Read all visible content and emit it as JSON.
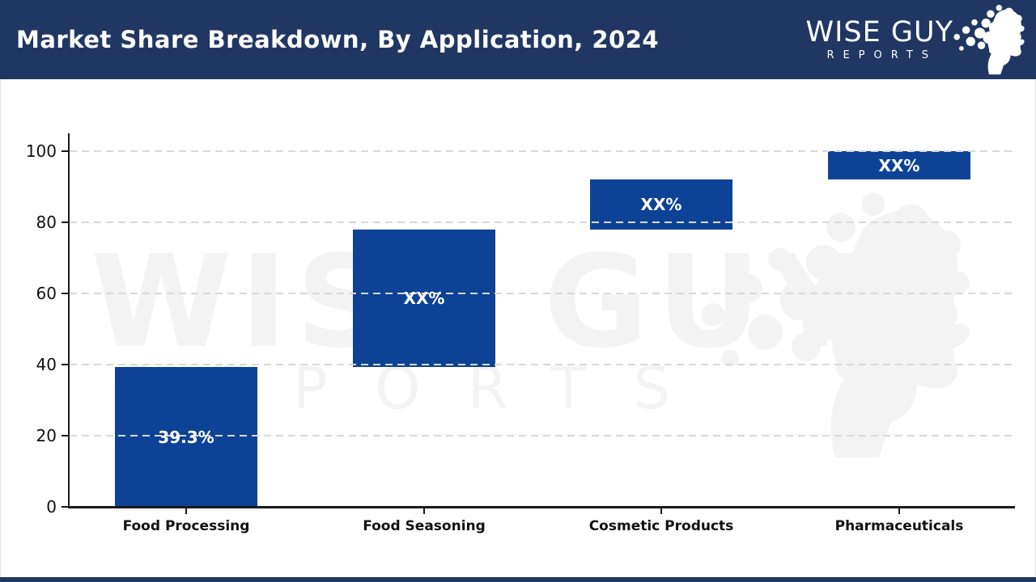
{
  "header": {
    "title": "Market Share Breakdown, By Application, 2024",
    "logo": {
      "line1": "WISE GUY",
      "line2": "REPORTS"
    }
  },
  "watermark": {
    "line1": "WISE GUY",
    "line2": "REPORTS"
  },
  "colors": {
    "navy": "#203764",
    "bar_blue": "#0d4296",
    "gridline": "#d9d9d9",
    "axis": "#1a1a1a",
    "watermark": "#f3f3f3",
    "title_text": "#ffffff",
    "bar_label_text": "#ffffff"
  },
  "chart_data": {
    "type": "bar",
    "subtype": "waterfall",
    "title": "Market Share Breakdown, By Application, 2024",
    "categories": [
      "Food Processing",
      "Food Seasoning",
      "Cosmetic Products",
      "Pharmaceuticals"
    ],
    "segments": [
      {
        "category": "Food Processing",
        "start": 0,
        "end": 39.3,
        "label": "39.3%"
      },
      {
        "category": "Food Seasoning",
        "start": 39.3,
        "end": 78,
        "label": "XX%"
      },
      {
        "category": "Cosmetic Products",
        "start": 78,
        "end": 92,
        "label": "XX%"
      },
      {
        "category": "Pharmaceuticals",
        "start": 92,
        "end": 100,
        "label": "XX%"
      }
    ],
    "yticks": [
      0,
      20,
      40,
      60,
      80,
      100
    ],
    "ylim": [
      0,
      104
    ],
    "xlabel": "",
    "ylabel": "",
    "grid": "horizontal-dashed-over-bars",
    "legend": "none",
    "bar_color": "#0d4296"
  }
}
